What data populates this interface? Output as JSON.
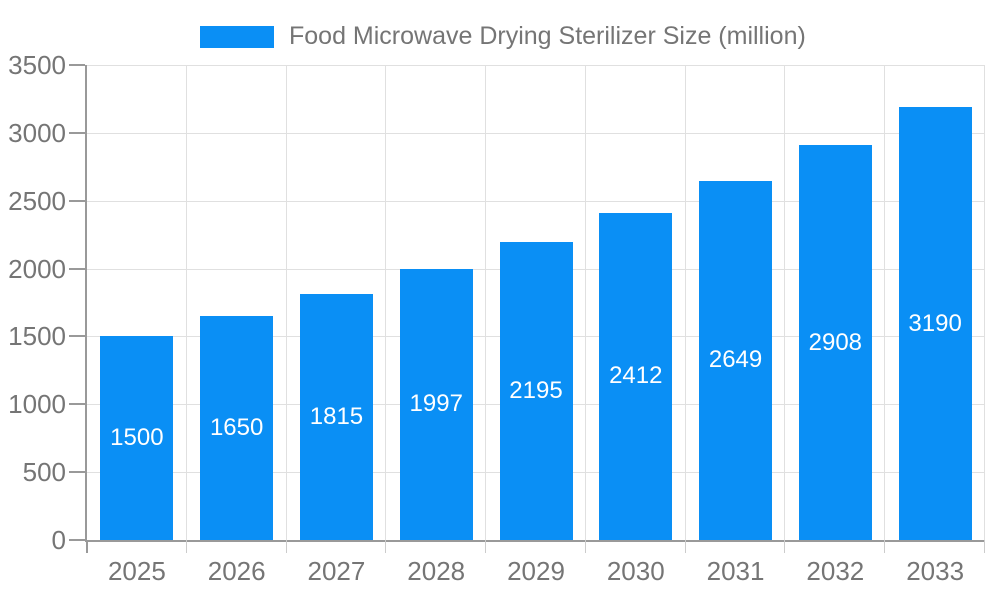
{
  "legend": {
    "label": "Food Microwave Drying Sterilizer Size (million)"
  },
  "chart_data": {
    "type": "bar",
    "title": "Food Microwave Drying Sterilizer Size (million)",
    "categories": [
      "2025",
      "2026",
      "2027",
      "2028",
      "2029",
      "2030",
      "2031",
      "2032",
      "2033"
    ],
    "values": [
      1500,
      1650,
      1815,
      1997,
      2195,
      2412,
      2649,
      2908,
      3190
    ],
    "xlabel": "",
    "ylabel": "",
    "ylim": [
      0,
      3500
    ],
    "yticks": [
      0,
      500,
      1000,
      1500,
      2000,
      2500,
      3000,
      3500
    ],
    "legend_position": "top",
    "grid": true,
    "value_labels_shown": true,
    "colors": {
      "bar": "#0a8ff5",
      "value_label": "#ffffff",
      "axis_line": "#999999",
      "gridline": "#e0e0e0",
      "minor_tick": "#cccccc",
      "text": "#757575",
      "background": "#ffffff"
    }
  }
}
